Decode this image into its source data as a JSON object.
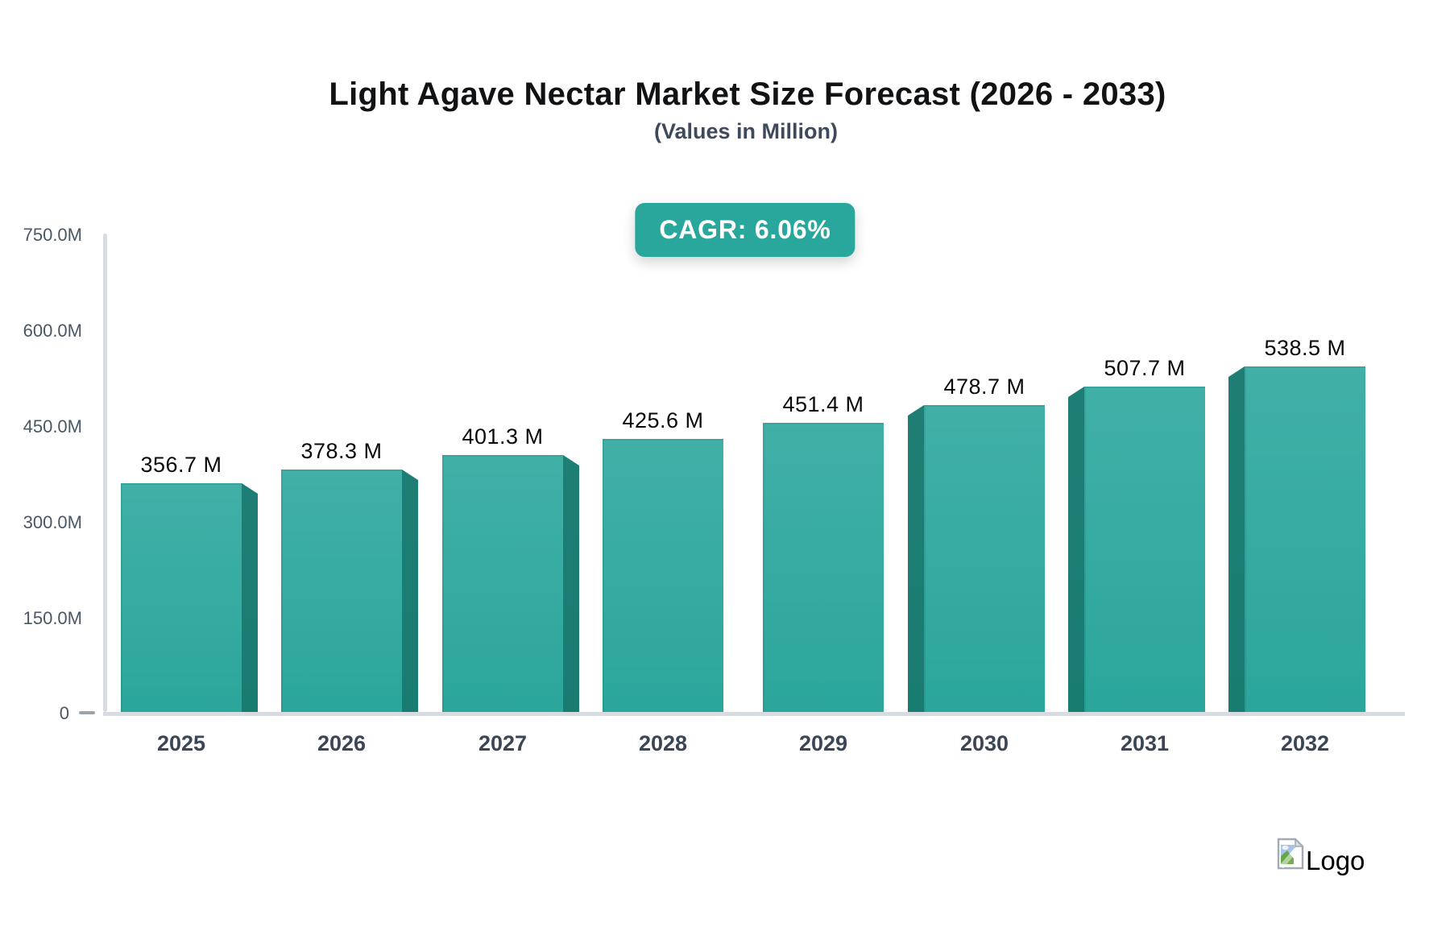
{
  "header": {
    "title": "Light Agave Nectar Market Size Forecast (2026 - 2033)",
    "subtitle": "(Values in Million)",
    "cagr_label": "CAGR: 6.06%"
  },
  "y_axis": {
    "tick_labels": [
      "750.0M",
      "600.0M",
      "450.0M",
      "300.0M",
      "150.0M"
    ],
    "zero_label": "0"
  },
  "bars": [
    {
      "year": "2025",
      "label": "356.7 M",
      "value": 356.7
    },
    {
      "year": "2026",
      "label": "378.3 M",
      "value": 378.3
    },
    {
      "year": "2027",
      "label": "401.3 M",
      "value": 401.3
    },
    {
      "year": "2028",
      "label": "425.6 M",
      "value": 425.6
    },
    {
      "year": "2029",
      "label": "451.4 M",
      "value": 451.4
    },
    {
      "year": "2030",
      "label": "478.7 M",
      "value": 478.7
    },
    {
      "year": "2031",
      "label": "507.7 M",
      "value": 507.7
    },
    {
      "year": "2032",
      "label": "538.5 M",
      "value": 538.5
    }
  ],
  "logo": {
    "text": "Logo"
  },
  "colors": {
    "bar_face_top": "#41b0a7",
    "bar_face_bottom": "#2ba69b",
    "bar_side": "#1e7e75",
    "badge_bg": "#2aa79c",
    "axis_line": "#d8dbe0",
    "tick_text": "#4a5866",
    "year_text": "#3a4656",
    "value_text": "#0a0a0a",
    "title_text": "#101214",
    "subtitle_text": "#3e4a5b"
  },
  "chart_data": {
    "type": "bar",
    "title": "Light Agave Nectar Market Size Forecast (2026 - 2033)",
    "subtitle": "(Values in Million)",
    "cagr": "6.06%",
    "categories": [
      "2025",
      "2026",
      "2027",
      "2028",
      "2029",
      "2030",
      "2031",
      "2032"
    ],
    "values": [
      356.7,
      378.3,
      401.3,
      425.6,
      451.4,
      478.7,
      507.7,
      538.5
    ],
    "value_labels": [
      "356.7 M",
      "378.3 M",
      "401.3 M",
      "425.6 M",
      "451.4 M",
      "478.7 M",
      "507.7 M",
      "538.5 M"
    ],
    "xlabel": "",
    "ylabel": "",
    "ylim": [
      0,
      750
    ],
    "ytick_step": 150,
    "grid": false,
    "legend_position": "none",
    "bar_style": "3d-teal"
  }
}
